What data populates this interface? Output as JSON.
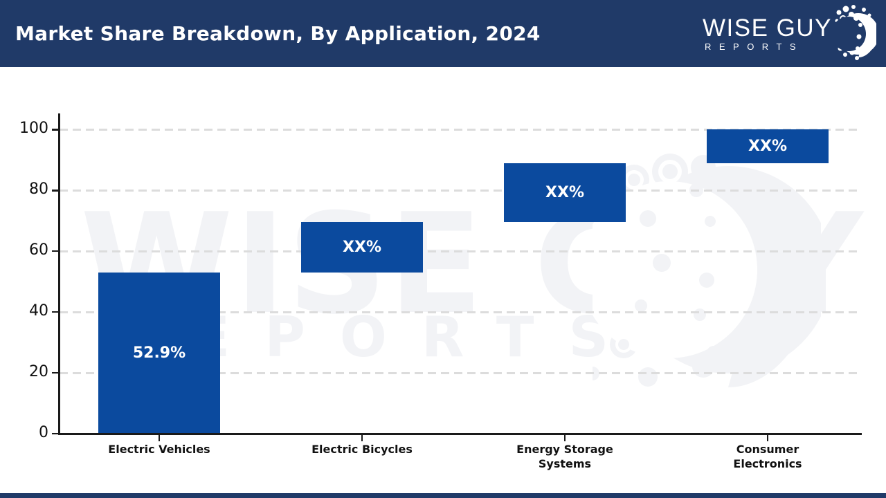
{
  "header": {
    "title": "Market Share Breakdown, By Application, 2024",
    "logo": {
      "line1": "WISE GUY",
      "line2": "REPORTS"
    }
  },
  "watermark": {
    "line1": "WISE GUY",
    "line2": "REPORTS"
  },
  "footer": {},
  "colors": {
    "header_bg": "#203a68",
    "bar": "#0b4a9e",
    "grid": "#dcdcdc",
    "axis": "#1a1a1a",
    "bar_label": "#ffffff",
    "watermark": "#f2f3f6"
  },
  "chart_data": {
    "type": "bar",
    "subtype": "waterfall",
    "title": "Market Share Breakdown, By Application, 2024",
    "categories": [
      "Electric Vehicles",
      "Electric Bicycles",
      "Energy Storage Systems",
      "Consumer Electronics"
    ],
    "series": [
      {
        "name": "Electric Vehicles",
        "start": 0,
        "end": 52.9,
        "value": 52.9,
        "label": "52.9%"
      },
      {
        "name": "Electric Bicycles",
        "start": 52.9,
        "end": 69.7,
        "value": 16.8,
        "label": "XX%"
      },
      {
        "name": "Energy Storage Systems",
        "start": 69.7,
        "end": 89.0,
        "value": 19.3,
        "label": "XX%"
      },
      {
        "name": "Consumer Electronics",
        "start": 89.0,
        "end": 100.0,
        "value": 11.0,
        "label": "XX%"
      }
    ],
    "xlabel": "",
    "ylabel": "",
    "ylim": [
      0,
      100
    ],
    "yticks": [
      0,
      20,
      40,
      60,
      80,
      100
    ],
    "grid": "horizontal-dashed",
    "legend_position": "none",
    "bar_color": "#0b4a9e"
  }
}
